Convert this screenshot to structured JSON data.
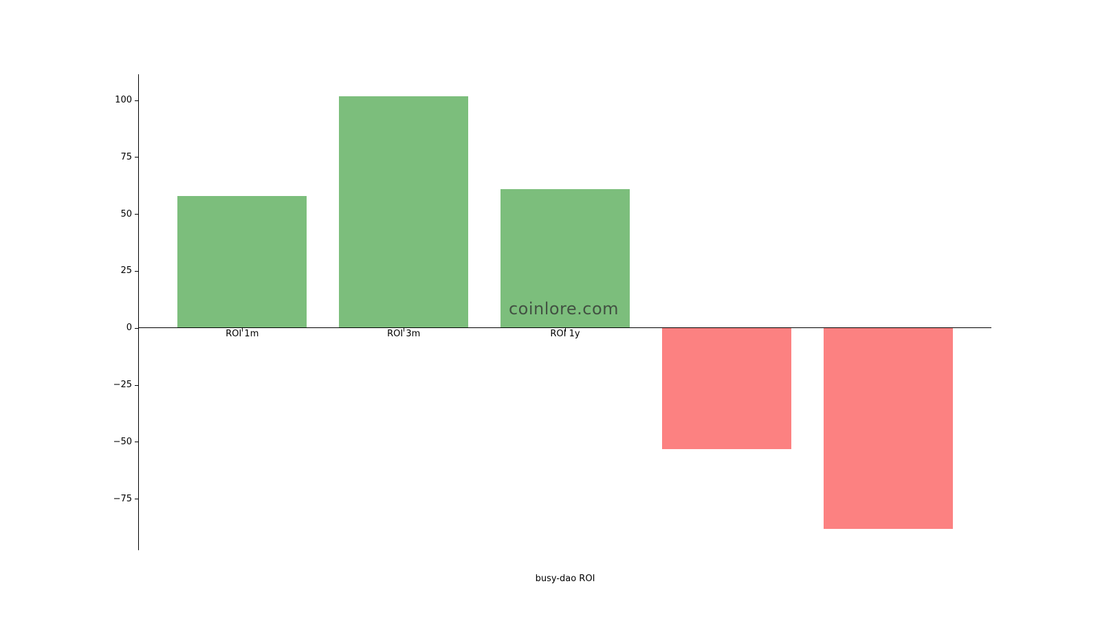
{
  "watermark": {
    "text": "coinlore.com",
    "color": "#333333"
  },
  "chart_data": {
    "type": "bar",
    "title": "busy-dao ROI",
    "categories": [
      "ROI 1m",
      "ROI 3m",
      "ROI 1y",
      "",
      ""
    ],
    "values": [
      58,
      102,
      61,
      -53,
      -88
    ],
    "series": [
      {
        "name": "busy-dao ROI %",
        "values": [
          58,
          102,
          61,
          -53,
          -88
        ]
      }
    ],
    "positive_color": "#7cbe7c",
    "negative_color": "#fc8181",
    "axis_color": "#000000",
    "y_ticks": [
      100,
      75,
      50,
      25,
      0,
      -25,
      -50,
      -75
    ],
    "y_tick_labels": [
      "100",
      "75",
      "50",
      "25",
      "0",
      "−25",
      "−50",
      "−75"
    ],
    "ylim": [
      -97.5,
      111.5
    ],
    "xlabel": "",
    "ylabel": "",
    "grid": false,
    "legend_position": "none",
    "bar_width_fraction": 0.8
  }
}
